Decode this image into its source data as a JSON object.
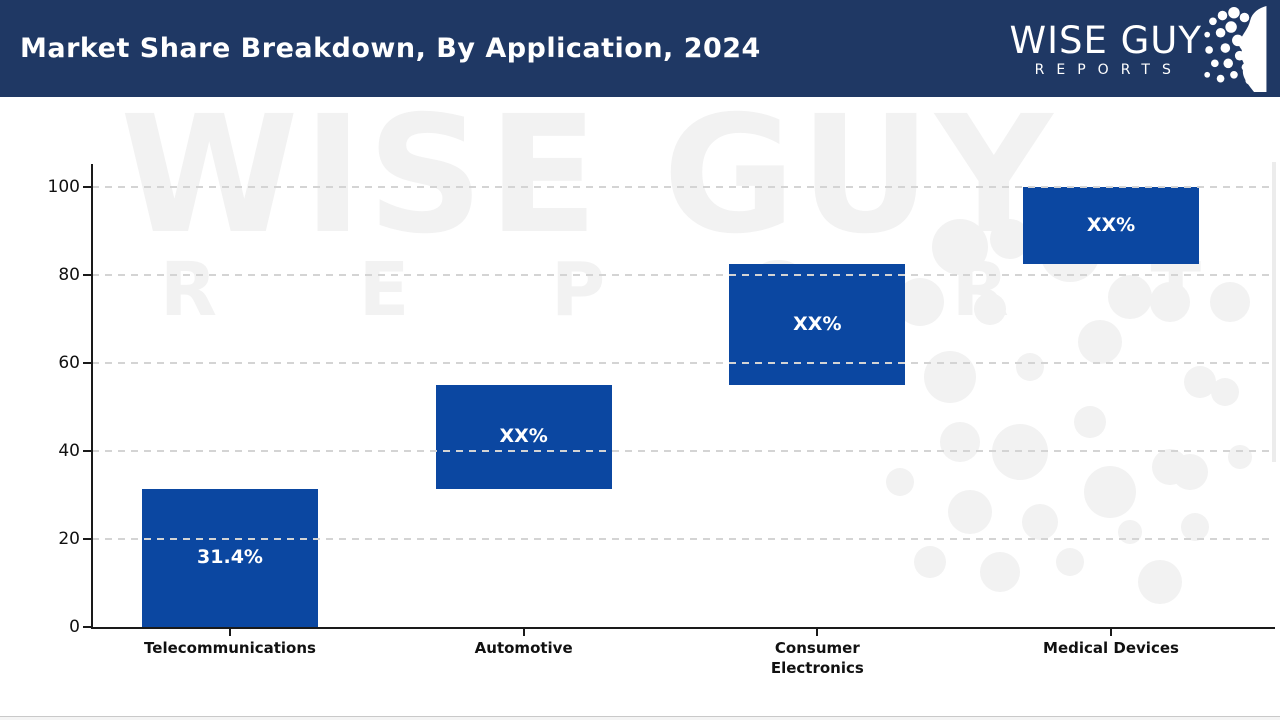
{
  "header": {
    "title": "Market Share Breakdown, By Application, 2024",
    "logo": {
      "line1": "WISE GUY",
      "line2": "REPORTS"
    }
  },
  "watermark": {
    "line1": "WISE GUY",
    "line2": "R E P O R T S"
  },
  "colors": {
    "header_bg": "#1f3864",
    "bar": "#0b47a1",
    "bar_label": "#ffffff",
    "grid": "#d4d4d4",
    "axis": "#1a1a1a",
    "watermark": "#f2f2f2"
  },
  "chart_data": {
    "type": "bar",
    "subtype": "waterfall",
    "title": "Market Share Breakdown, By Application, 2024",
    "xlabel": "",
    "ylabel": "",
    "categories": [
      "Telecommunications",
      "Automotive",
      "Consumer Electronics",
      "Medical Devices"
    ],
    "xlabels": [
      "Telecommunications",
      "Automotive",
      "Consumer\nElectronics",
      "Medical Devices"
    ],
    "bars": [
      {
        "category": "Telecommunications",
        "start": 0,
        "end": 31.4,
        "label": "31.4%"
      },
      {
        "category": "Automotive",
        "start": 31.4,
        "end": 55,
        "label": "XX%"
      },
      {
        "category": "Consumer Electronics",
        "start": 55,
        "end": 82.5,
        "label": "XX%"
      },
      {
        "category": "Medical Devices",
        "start": 82.5,
        "end": 100,
        "label": "XX%"
      }
    ],
    "ylim": [
      0,
      100
    ],
    "yticks": [
      0,
      20,
      40,
      60,
      80,
      100
    ],
    "grid": "horizontal dashed, drawn over bars",
    "legend": "none"
  }
}
